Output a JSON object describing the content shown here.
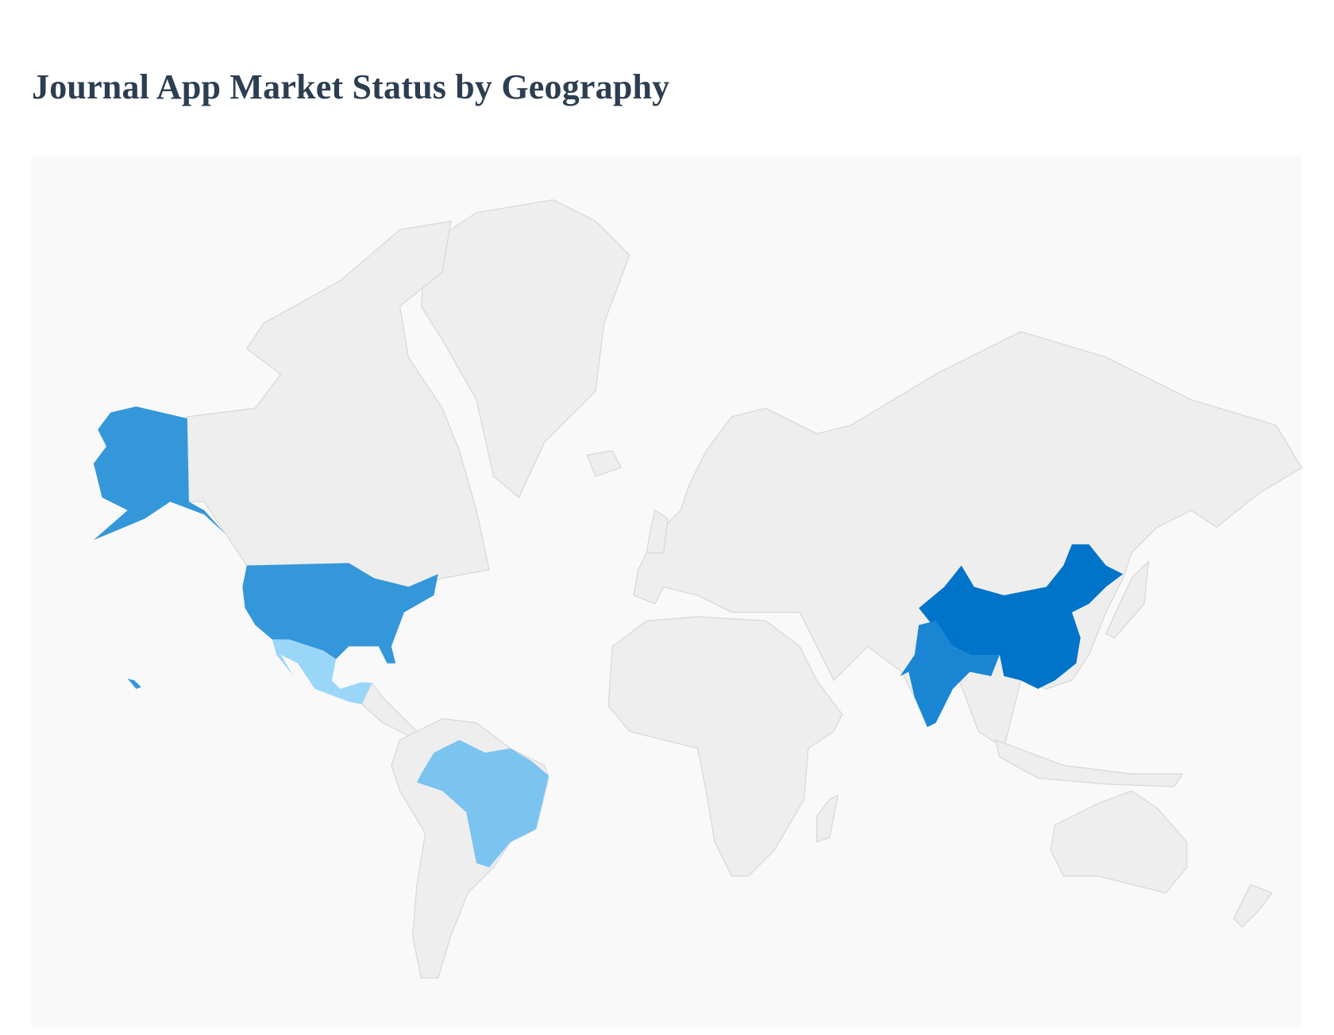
{
  "title": "Journal App Market Status by Geography",
  "map": {
    "background_color": "#f9f9f9",
    "default_land_color": "#eeeeee",
    "border_color": "#d9d9d9",
    "highlighted_countries": [
      {
        "id": "china",
        "name": "China",
        "color": "#0074c9"
      },
      {
        "id": "india",
        "name": "India",
        "color": "#1a86d3"
      },
      {
        "id": "usa",
        "name": "United States",
        "color": "#3497da"
      },
      {
        "id": "brazil",
        "name": "Brazil",
        "color": "#7bc4ef"
      },
      {
        "id": "mexico",
        "name": "Mexico",
        "color": "#9ad6f8"
      }
    ]
  }
}
